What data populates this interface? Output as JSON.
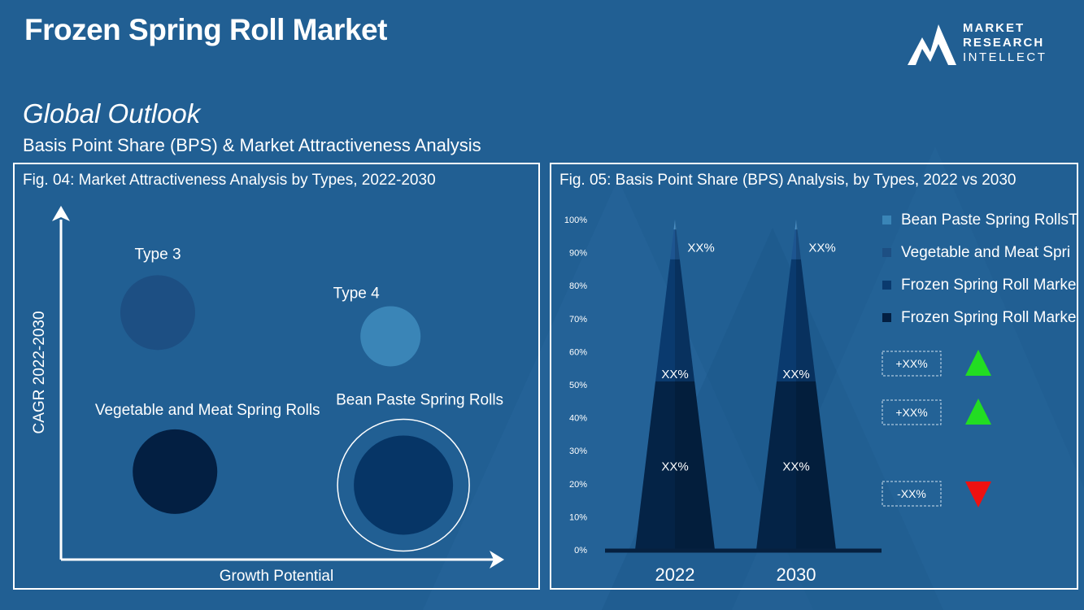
{
  "header": {
    "title": "Frozen Spring Roll Market",
    "subtitle": "Global Outlook",
    "description": "Basis Point Share (BPS) & Market Attractiveness  Analysis"
  },
  "logo": {
    "line1": "MARKET",
    "line2": "RESEARCH",
    "line3": "INTELLECT"
  },
  "colors": {
    "background": "#215f93",
    "type3": "#1d4f83",
    "type4": "#3a85b7",
    "vegetable": "#031f42",
    "bean": "#063566",
    "up": "#22dd22",
    "down": "#ee1111"
  },
  "chart_data": [
    {
      "type": "scatter",
      "title": "Fig. 04: Market Attractiveness Analysis by Types, 2022-2030",
      "xlabel": "Growth Potential",
      "ylabel": "CAGR 2022-2030",
      "points": [
        {
          "label": "Type 3",
          "x": 0.2,
          "y": 0.73,
          "size": 0.6,
          "color": "#1d4f83",
          "ring": false
        },
        {
          "label": "Type 4",
          "x": 0.74,
          "y": 0.66,
          "size": 0.45,
          "color": "#3a85b7",
          "ring": false
        },
        {
          "label": "Vegetable and Meat Spring Rolls",
          "x": 0.24,
          "y": 0.26,
          "size": 0.7,
          "color": "#031f42",
          "ring": false
        },
        {
          "label": "Bean Paste Spring Rolls",
          "x": 0.77,
          "y": 0.22,
          "size": 0.85,
          "color": "#063566",
          "ring": true
        }
      ]
    },
    {
      "type": "bar",
      "title": "Fig. 05: Basis Point Share (BPS) Analysis, by Types,  2022 vs 2030",
      "categories": [
        "2022",
        "2030"
      ],
      "y_ticks": [
        "0%",
        "10%",
        "20%",
        "30%",
        "40%",
        "50%",
        "60%",
        "70%",
        "80%",
        "90%",
        "100%"
      ],
      "ylim": [
        0,
        100
      ],
      "segments": [
        {
          "from": 0,
          "to": 51,
          "label": "XX%",
          "color": "#042346"
        },
        {
          "from": 51,
          "to": 88,
          "label": "XX%",
          "color": "#0a3a6e"
        },
        {
          "from": 88,
          "to": 97,
          "label": "XX%",
          "color": "#1d5590"
        },
        {
          "from": 97,
          "to": 100,
          "label": "",
          "color": "#4a8fc4"
        }
      ],
      "legend": [
        {
          "label": "Bean Paste Spring RollsT",
          "color": "#3a85b7"
        },
        {
          "label": "Vegetable and Meat Spri",
          "color": "#1d4f83"
        },
        {
          "label": "Frozen Spring Roll Marke",
          "color": "#0a3a6e"
        },
        {
          "label": "Frozen Spring Roll Marke",
          "color": "#031f42"
        }
      ],
      "changes": [
        {
          "label": "+XX%",
          "direction": "up"
        },
        {
          "label": "+XX%",
          "direction": "up"
        },
        {
          "label": "-XX%",
          "direction": "down"
        }
      ]
    }
  ]
}
